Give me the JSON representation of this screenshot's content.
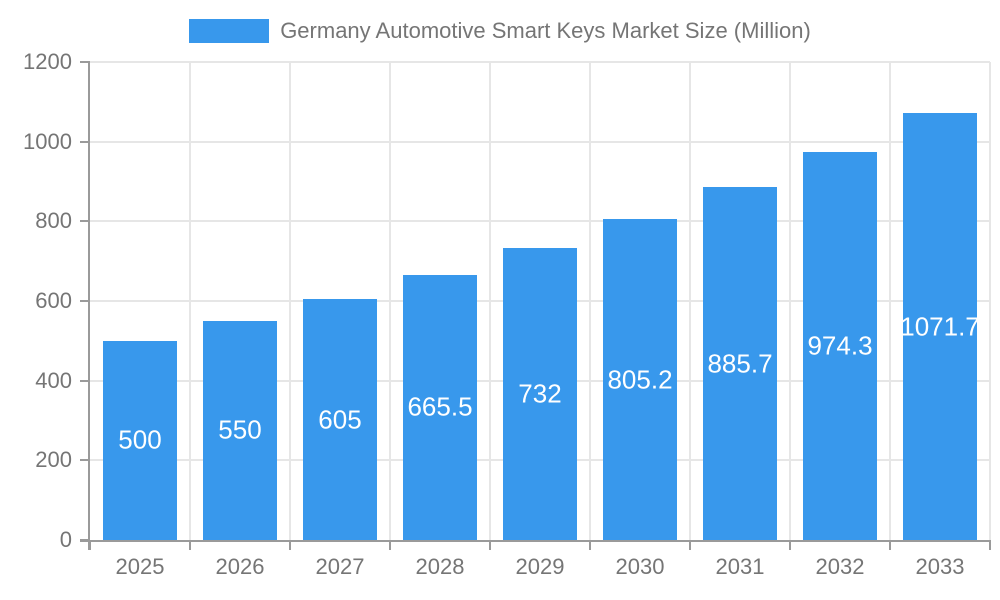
{
  "chart_data": {
    "type": "bar",
    "title": "Germany Automotive Smart Keys Market Size (Million)",
    "categories": [
      "2025",
      "2026",
      "2027",
      "2028",
      "2029",
      "2030",
      "2031",
      "2032",
      "2033"
    ],
    "values": [
      500,
      550,
      605,
      665.5,
      732,
      805.2,
      885.7,
      974.3,
      1071.7
    ],
    "value_labels": [
      "500",
      "550",
      "605",
      "665.5",
      "732",
      "805.2",
      "885.7",
      "974.3",
      "1071.7"
    ],
    "xlabel": "",
    "ylabel": "",
    "ylim": [
      0,
      1200
    ],
    "yticks": [
      0,
      200,
      400,
      600,
      800,
      1000,
      1200
    ],
    "grid": true,
    "legend_position": "top",
    "colors": {
      "bar": "#3898EC",
      "bar_label": "#FFFFFF",
      "axis_line": "#9A9A9A",
      "gridline": "#E6E6E6",
      "text": "#757575",
      "background": "#FFFFFF"
    }
  }
}
